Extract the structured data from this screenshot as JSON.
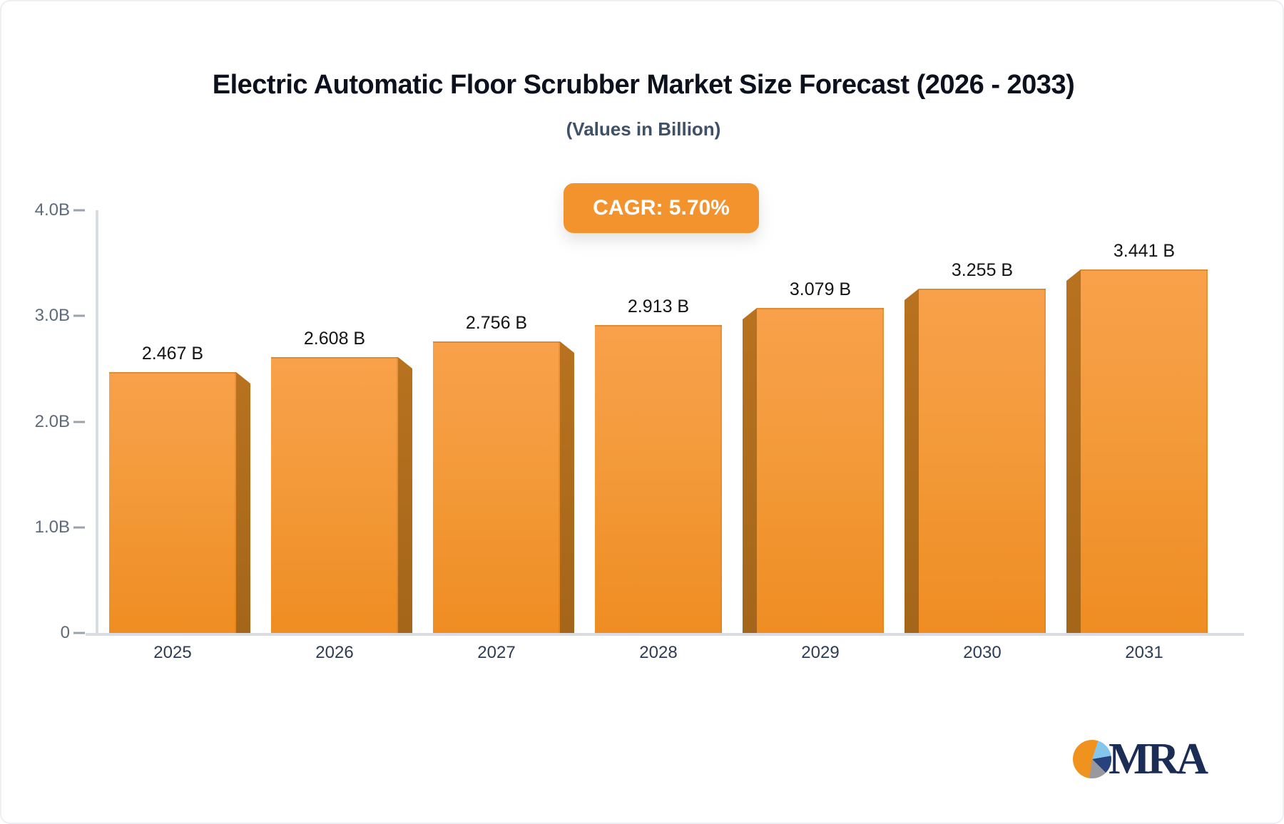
{
  "header": {
    "title": "Electric Automatic Floor Scrubber Market Size Forecast (2026 - 2033)",
    "subtitle": "(Values in Billion)",
    "cagr_label": "CAGR: 5.70%"
  },
  "chart_data": {
    "type": "bar",
    "title": "Electric Automatic Floor Scrubber Market Size Forecast (2026 - 2033)",
    "subtitle": "(Values in Billion)",
    "annotation": "CAGR: 5.70%",
    "categories": [
      "2025",
      "2026",
      "2027",
      "2028",
      "2029",
      "2030",
      "2031"
    ],
    "values": [
      2.467,
      2.608,
      2.756,
      2.913,
      3.079,
      3.255,
      3.441
    ],
    "data_labels": [
      "2.467 B",
      "2.608 B",
      "2.756 B",
      "2.913 B",
      "3.079 B",
      "3.255 B",
      "3.441 B"
    ],
    "xlabel": "",
    "ylabel": "",
    "ylim": [
      0,
      4
    ],
    "yticks": [
      {
        "value": 4,
        "label": "4.0B"
      },
      {
        "value": 3,
        "label": "3.0B"
      },
      {
        "value": 2,
        "label": "2.0B"
      },
      {
        "value": 1,
        "label": "1.0B"
      },
      {
        "value": 0,
        "label": "0"
      }
    ],
    "grid": false,
    "legend": false,
    "bar_style": "3d-extruded-perspective-center"
  },
  "logo": {
    "text": "MRA"
  },
  "colors": {
    "bar_top": "#f8a14b",
    "bar_bottom": "#ef8d22",
    "bar_side": "#b06c1e",
    "badge": "#f2932e",
    "axis_line": "#d9dce1",
    "tick_dash": "#9aa2ae",
    "title_text": "#0c111d",
    "subtitle_text": "#3f5068",
    "ytick_text": "#5e6a79",
    "xtick_text": "#2d3c57",
    "logo_navy": "#1b2c55",
    "logo_lightblue": "#85c6ed",
    "logo_gray": "#97999f",
    "logo_orange": "#f0921e"
  }
}
